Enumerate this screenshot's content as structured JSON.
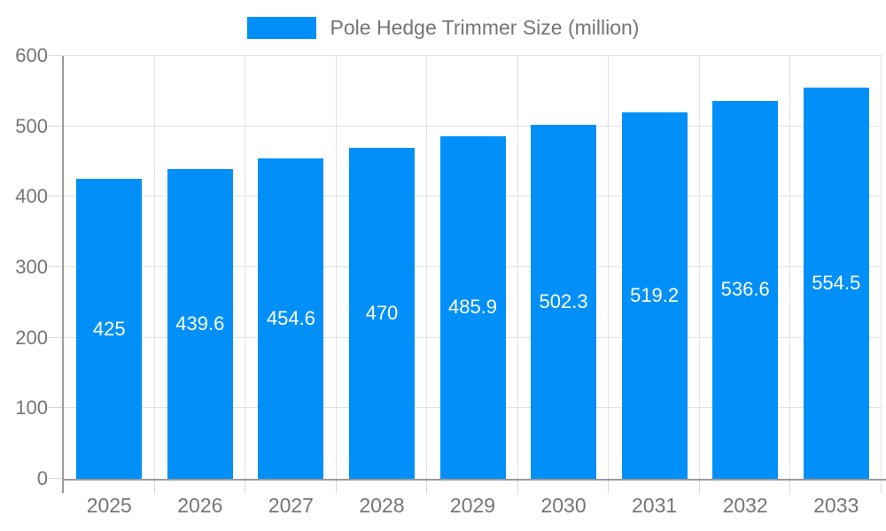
{
  "legend": {
    "label": "Pole Hedge Trimmer Size (million)"
  },
  "colors": {
    "bar": "#0290f8",
    "axis": "#9a9a9a",
    "grid": "#e3e3e3",
    "tick": "#d9d9d9",
    "text_muted": "#757575",
    "bar_label": "#ffffff",
    "background": "#ffffff"
  },
  "chart_data": {
    "type": "bar",
    "title": "Pole Hedge Trimmer Size (million)",
    "categories": [
      "2025",
      "2026",
      "2027",
      "2028",
      "2029",
      "2030",
      "2031",
      "2032",
      "2033"
    ],
    "values": [
      425,
      439.6,
      454.6,
      470,
      485.9,
      502.3,
      519.2,
      536.6,
      554.5
    ],
    "value_labels": [
      "425",
      "439.6",
      "454.6",
      "470",
      "485.9",
      "502.3",
      "519.2",
      "536.6",
      "554.5"
    ],
    "xlabel": "",
    "ylabel": "",
    "ylim": [
      0,
      600
    ],
    "ytick_step": 100,
    "yticks": [
      0,
      100,
      200,
      300,
      400,
      500,
      600
    ],
    "grid": true,
    "legend_position": "top-center",
    "bar_color": "#0290f8",
    "value_label_position": "inside-middle"
  }
}
